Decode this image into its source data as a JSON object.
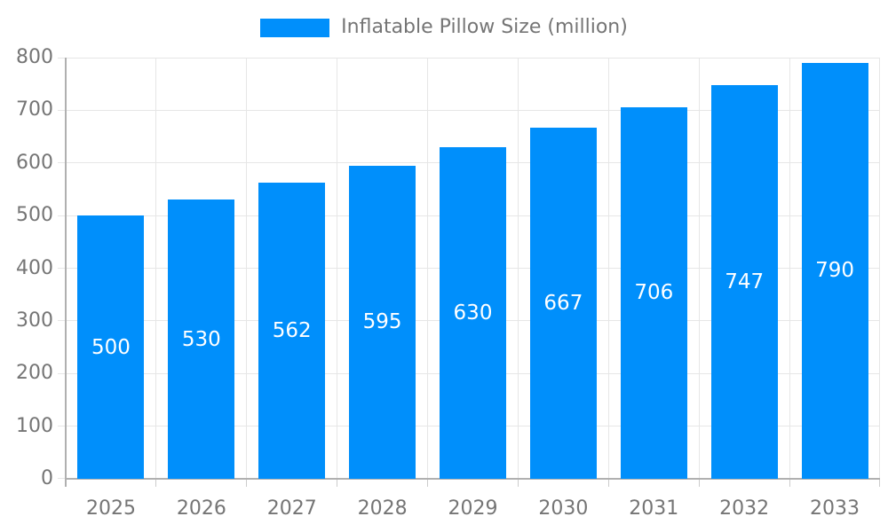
{
  "colors": {
    "bar": "#008ffb",
    "grid": "#e6e6e6",
    "axis": "#b0b0b0",
    "tick": "#cccccc",
    "axis_label": "#757575",
    "bar_label": "#ffffff",
    "background": "#ffffff"
  },
  "legend": {
    "label": "Inflatable Pillow Size (million)"
  },
  "chart_data": {
    "type": "bar",
    "title": "",
    "categories": [
      "2025",
      "2026",
      "2027",
      "2028",
      "2029",
      "2030",
      "2031",
      "2032",
      "2033"
    ],
    "series": [
      {
        "name": "Inflatable Pillow Size (million)",
        "color": "#008ffb",
        "values": [
          500,
          530,
          562,
          595,
          630,
          667,
          706,
          747,
          790
        ]
      }
    ],
    "xlabel": "",
    "ylabel": "",
    "ylim": [
      0,
      800
    ],
    "yticks": [
      0,
      100,
      200,
      300,
      400,
      500,
      600,
      700,
      800
    ],
    "grid": true,
    "legend_position": "top",
    "value_labels": "inside-center"
  }
}
